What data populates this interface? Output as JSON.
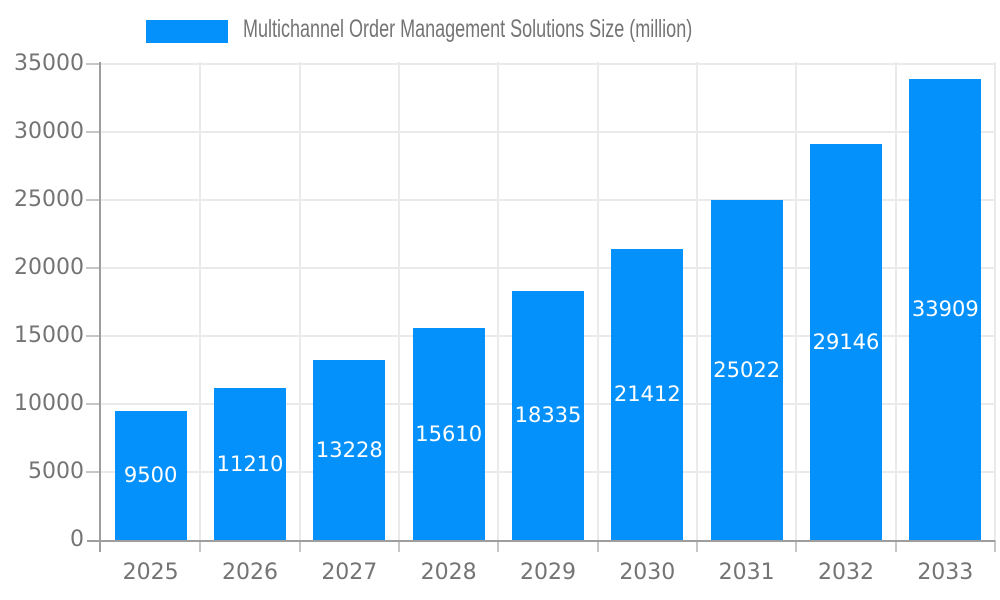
{
  "legend": {
    "items": [
      {
        "label": "Multichannel Order Management Solutions Size (million)",
        "swatch_color": "#0591FB"
      }
    ]
  },
  "chart_data": {
    "type": "bar",
    "title": "Multichannel Order Management Solutions Size (million)",
    "series_name": "Multichannel Order Management Solutions Size (million)",
    "categories": [
      "2025",
      "2026",
      "2027",
      "2028",
      "2029",
      "2030",
      "2031",
      "2032",
      "2033"
    ],
    "values": [
      9500,
      11210,
      13228,
      15610,
      18335,
      21412,
      25022,
      29146,
      33909
    ],
    "bar_labels": [
      "9500",
      "11210",
      "13228",
      "15610",
      "18335",
      "21412",
      "25022",
      "29146",
      "33909"
    ],
    "xlabel": "",
    "ylabel": "",
    "ylim": [
      0,
      35000
    ],
    "yticks": [
      0,
      5000,
      10000,
      15000,
      20000,
      25000,
      30000,
      35000
    ],
    "grid": true,
    "legend_position": "top-left",
    "bar_label_position": "center-inside",
    "colors": {
      "bar": "#0591FB",
      "bar_label": "#FFFFFF",
      "tick_label": "#747474",
      "title": "#747474",
      "gridline": "#EAEAEA",
      "tick_mark": "#C6C6C6",
      "axis": "#9E9E9E",
      "background": "#FFFFFF"
    }
  }
}
